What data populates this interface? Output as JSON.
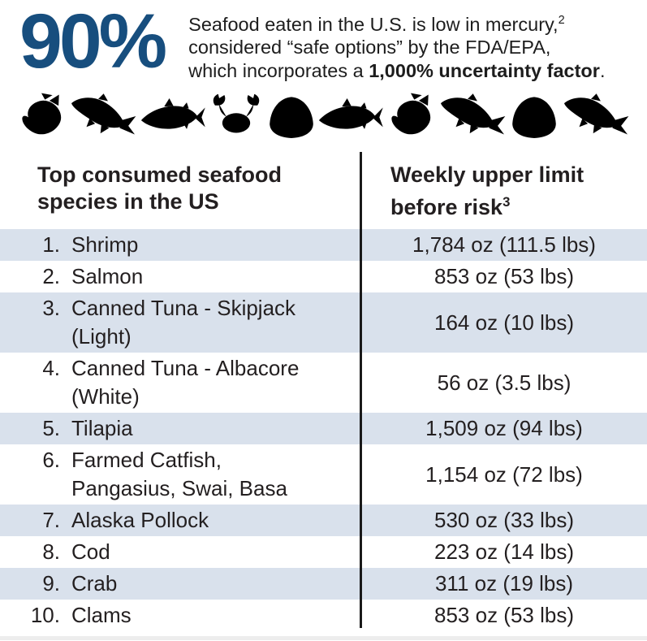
{
  "header": {
    "stat": "90%",
    "line1": "Seafood eaten in the U.S. is low in mercury,",
    "line1_sup": "2",
    "line2": "considered “safe options” by the FDA/EPA,",
    "line3_prefix": "which incorporates a ",
    "line3_bold": "1,000% uncertainty factor",
    "line3_suffix": "."
  },
  "icons": {
    "row": [
      {
        "icon": "shrimp"
      },
      {
        "icon": "salmon"
      },
      {
        "icon": "tuna"
      },
      {
        "icon": "crab"
      },
      {
        "icon": "clam"
      },
      {
        "icon": "tuna"
      },
      {
        "icon": "shrimp"
      },
      {
        "icon": "salmon"
      },
      {
        "icon": "clam"
      },
      {
        "icon": "salmon",
        "muted": true
      }
    ]
  },
  "table": {
    "col1_header_line1": "Top consumed seafood",
    "col1_header_line2": "species in the US",
    "col2_header_line1": "Weekly upper limit",
    "col2_header_line2": "before risk",
    "col2_header_sup": "3",
    "rows": [
      {
        "rank": "1.",
        "species": "Shrimp",
        "limit": "1,784 oz (111.5 lbs)",
        "shaded": true
      },
      {
        "rank": "2.",
        "species": "Salmon",
        "limit": "853 oz (53 lbs)",
        "shaded": false
      },
      {
        "rank": "3.",
        "species": "Canned Tuna - Skipjack\n(Light)",
        "limit": "164 oz (10 lbs)",
        "shaded": true
      },
      {
        "rank": "4.",
        "species": "Canned Tuna - Albacore\n(White)",
        "limit": "56 oz (3.5 lbs)",
        "shaded": false
      },
      {
        "rank": "5.",
        "species": "Tilapia",
        "limit": "1,509 oz (94 lbs)",
        "shaded": true
      },
      {
        "rank": "6.",
        "species": "Farmed Catfish,\nPangasius, Swai, Basa",
        "limit": "1,154 oz (72 lbs)",
        "shaded": false
      },
      {
        "rank": "7.",
        "species": "Alaska Pollock",
        "limit": "530 oz (33 lbs)",
        "shaded": true
      },
      {
        "rank": "8.",
        "species": "Cod",
        "limit": "223 oz (14 lbs)",
        "shaded": false
      },
      {
        "rank": "9.",
        "species": "Crab",
        "limit": "311 oz (19 lbs)",
        "shaded": true
      },
      {
        "rank": "10.",
        "species": "Clams",
        "limit": "853 oz (53 lbs)",
        "shaded": false
      }
    ]
  },
  "colors": {
    "brand_blue": "#174E7E",
    "icon_muted": "#C4CEDB",
    "row_shade": "#D9E1EC",
    "divider": "#1A1A1A"
  }
}
